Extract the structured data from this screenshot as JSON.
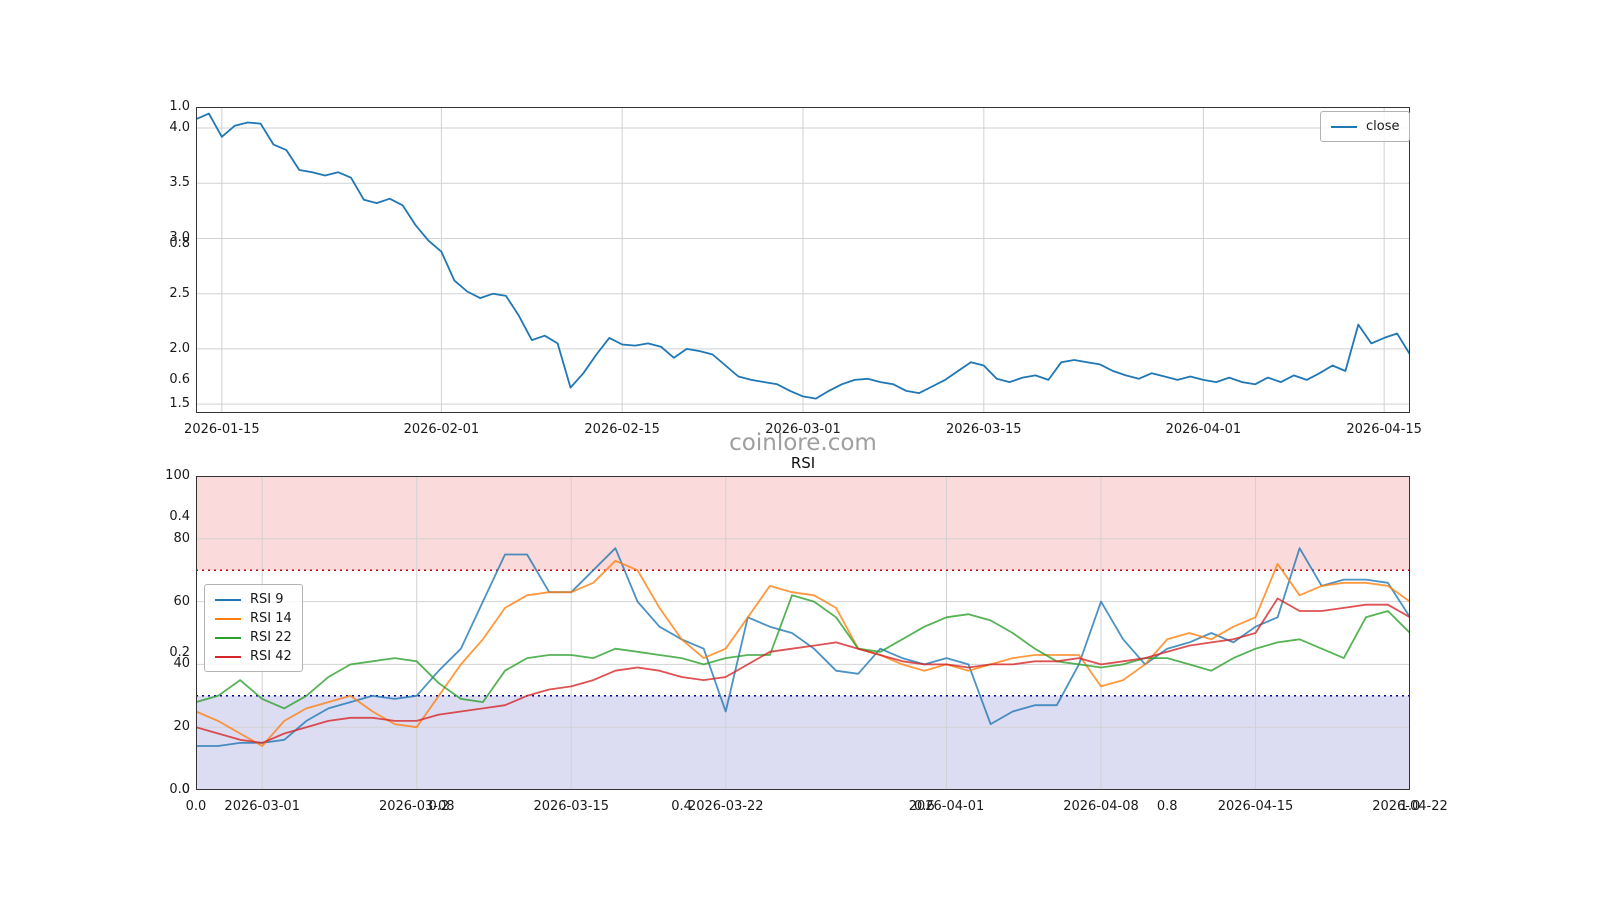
{
  "watermark": "coinlore.com",
  "overlay_axis": {
    "y_ticks": [
      "1.0",
      "0.8",
      "0.6",
      "0.4",
      "0.2",
      "0.0"
    ],
    "x_ticks": [
      "0.0",
      "0.2",
      "0.4",
      "0.6",
      "0.8",
      "1.0"
    ]
  },
  "chart_data": [
    {
      "type": "line",
      "title": "",
      "xlabel": "",
      "ylabel": "",
      "grid": true,
      "legend_position": "upper right",
      "ylim": [
        1.42,
        4.19
      ],
      "y_ticks": [
        "4.0",
        "3.5",
        "3.0",
        "2.5",
        "2.0",
        "1.5"
      ],
      "x_ticks": [
        "2026-01-15",
        "2026-02-01",
        "2026-02-15",
        "2026-03-01",
        "2026-03-15",
        "2026-04-01",
        "2026-04-15"
      ],
      "x": [
        "2026-01-13",
        "2026-01-14",
        "2026-01-15",
        "2026-01-16",
        "2026-01-17",
        "2026-01-18",
        "2026-01-19",
        "2026-01-20",
        "2026-01-21",
        "2026-01-22",
        "2026-01-23",
        "2026-01-24",
        "2026-01-25",
        "2026-01-26",
        "2026-01-27",
        "2026-01-28",
        "2026-01-29",
        "2026-01-30",
        "2026-01-31",
        "2026-02-01",
        "2026-02-02",
        "2026-02-03",
        "2026-02-04",
        "2026-02-05",
        "2026-02-06",
        "2026-02-07",
        "2026-02-08",
        "2026-02-09",
        "2026-02-10",
        "2026-02-11",
        "2026-02-12",
        "2026-02-13",
        "2026-02-14",
        "2026-02-15",
        "2026-02-16",
        "2026-02-17",
        "2026-02-18",
        "2026-02-19",
        "2026-02-20",
        "2026-02-21",
        "2026-02-22",
        "2026-02-23",
        "2026-02-24",
        "2026-02-25",
        "2026-02-26",
        "2026-02-27",
        "2026-02-28",
        "2026-03-01",
        "2026-03-02",
        "2026-03-03",
        "2026-03-04",
        "2026-03-05",
        "2026-03-06",
        "2026-03-07",
        "2026-03-08",
        "2026-03-09",
        "2026-03-10",
        "2026-03-11",
        "2026-03-12",
        "2026-03-13",
        "2026-03-14",
        "2026-03-15",
        "2026-03-16",
        "2026-03-17",
        "2026-03-18",
        "2026-03-19",
        "2026-03-20",
        "2026-03-21",
        "2026-03-22",
        "2026-03-23",
        "2026-03-24",
        "2026-03-25",
        "2026-03-26",
        "2026-03-27",
        "2026-03-28",
        "2026-03-29",
        "2026-03-30",
        "2026-03-31",
        "2026-04-01",
        "2026-04-02",
        "2026-04-03",
        "2026-04-04",
        "2026-04-05",
        "2026-04-06",
        "2026-04-07",
        "2026-04-08",
        "2026-04-09",
        "2026-04-10",
        "2026-04-11",
        "2026-04-12",
        "2026-04-13",
        "2026-04-14",
        "2026-04-15",
        "2026-04-16",
        "2026-04-17"
      ],
      "series": [
        {
          "name": "close",
          "color": "#1f77b4",
          "opacity": 1,
          "values": [
            4.08,
            4.13,
            3.92,
            4.02,
            4.05,
            4.04,
            3.85,
            3.8,
            3.62,
            3.6,
            3.57,
            3.6,
            3.55,
            3.35,
            3.32,
            3.36,
            3.3,
            3.12,
            2.98,
            2.88,
            2.62,
            2.52,
            2.46,
            2.5,
            2.48,
            2.3,
            2.08,
            2.12,
            2.05,
            1.65,
            1.78,
            1.95,
            2.1,
            2.04,
            2.03,
            2.05,
            2.02,
            1.92,
            2.0,
            1.98,
            1.95,
            1.85,
            1.75,
            1.72,
            1.7,
            1.68,
            1.62,
            1.57,
            1.55,
            1.62,
            1.68,
            1.72,
            1.73,
            1.7,
            1.68,
            1.62,
            1.6,
            1.66,
            1.72,
            1.8,
            1.88,
            1.85,
            1.73,
            1.7,
            1.74,
            1.76,
            1.72,
            1.88,
            1.9,
            1.88,
            1.86,
            1.8,
            1.76,
            1.73,
            1.78,
            1.75,
            1.72,
            1.75,
            1.72,
            1.7,
            1.74,
            1.7,
            1.68,
            1.74,
            1.7,
            1.76,
            1.72,
            1.78,
            1.85,
            1.8,
            2.22,
            2.05,
            2.1,
            2.14,
            1.95
          ]
        }
      ]
    },
    {
      "type": "line",
      "title": "RSI",
      "xlabel": "",
      "ylabel": "",
      "grid": true,
      "legend_position": "center left",
      "ylim": [
        0,
        100
      ],
      "y_ticks": [
        "100",
        "80",
        "60",
        "40",
        "20",
        "0"
      ],
      "x_ticks": [
        "2026-03-01",
        "2026-03-08",
        "2026-03-15",
        "2026-03-22",
        "2026-04-01",
        "2026-04-08",
        "2026-04-15",
        "2026-04-22"
      ],
      "bands": [
        {
          "from": 70,
          "to": 100,
          "color": "#fadada",
          "label": "overbought-zone"
        },
        {
          "from": 0,
          "to": 30,
          "color": "#dcdcf2",
          "label": "oversold-zone"
        }
      ],
      "thresholds": [
        {
          "value": 70,
          "color": "#cc0000",
          "style": "dotted"
        },
        {
          "value": 30,
          "color": "#00008b",
          "style": "dotted"
        }
      ],
      "x": [
        "2026-02-26",
        "2026-02-27",
        "2026-02-28",
        "2026-03-01",
        "2026-03-02",
        "2026-03-03",
        "2026-03-04",
        "2026-03-05",
        "2026-03-06",
        "2026-03-07",
        "2026-03-08",
        "2026-03-09",
        "2026-03-10",
        "2026-03-11",
        "2026-03-12",
        "2026-03-13",
        "2026-03-14",
        "2026-03-15",
        "2026-03-16",
        "2026-03-17",
        "2026-03-18",
        "2026-03-19",
        "2026-03-20",
        "2026-03-21",
        "2026-03-22",
        "2026-03-23",
        "2026-03-24",
        "2026-03-25",
        "2026-03-26",
        "2026-03-27",
        "2026-03-28",
        "2026-03-29",
        "2026-03-30",
        "2026-03-31",
        "2026-04-01",
        "2026-04-02",
        "2026-04-03",
        "2026-04-04",
        "2026-04-05",
        "2026-04-06",
        "2026-04-07",
        "2026-04-08",
        "2026-04-09",
        "2026-04-10",
        "2026-04-11",
        "2026-04-12",
        "2026-04-13",
        "2026-04-14",
        "2026-04-15",
        "2026-04-16",
        "2026-04-17",
        "2026-04-18",
        "2026-04-19",
        "2026-04-20",
        "2026-04-21",
        "2026-04-22"
      ],
      "series": [
        {
          "name": "RSI 9",
          "color": "#1f77b4",
          "opacity": 0.8,
          "values": [
            14,
            14,
            15,
            15,
            16,
            22,
            26,
            28,
            30,
            29,
            30,
            38,
            45,
            60,
            75,
            75,
            63,
            63,
            70,
            77,
            60,
            52,
            48,
            45,
            25,
            55,
            52,
            50,
            45,
            38,
            37,
            45,
            42,
            40,
            42,
            40,
            21,
            25,
            27,
            27,
            40,
            60,
            48,
            40,
            45,
            47,
            50,
            47,
            52,
            55,
            77,
            65,
            67,
            67,
            66,
            55
          ]
        },
        {
          "name": "RSI 14",
          "color": "#ff7f0e",
          "opacity": 0.8,
          "values": [
            25,
            22,
            18,
            14,
            22,
            26,
            28,
            30,
            25,
            21,
            20,
            30,
            40,
            48,
            58,
            62,
            63,
            63,
            66,
            73,
            70,
            58,
            48,
            42,
            45,
            55,
            65,
            63,
            62,
            58,
            45,
            43,
            40,
            38,
            40,
            38,
            40,
            42,
            43,
            43,
            43,
            33,
            35,
            40,
            48,
            50,
            48,
            52,
            55,
            72,
            62,
            65,
            66,
            66,
            65,
            60
          ]
        },
        {
          "name": "RSI 22",
          "color": "#2ca02c",
          "opacity": 0.8,
          "values": [
            28,
            30,
            35,
            29,
            26,
            30,
            36,
            40,
            41,
            42,
            41,
            34,
            29,
            28,
            38,
            42,
            43,
            43,
            42,
            45,
            44,
            43,
            42,
            40,
            42,
            43,
            43,
            62,
            60,
            55,
            45,
            44,
            48,
            52,
            55,
            56,
            54,
            50,
            45,
            41,
            40,
            39,
            40,
            42,
            42,
            40,
            38,
            42,
            45,
            47,
            48,
            45,
            42,
            55,
            57,
            50
          ]
        },
        {
          "name": "RSI 42",
          "color": "#d62728",
          "opacity": 0.8,
          "values": [
            20,
            18,
            16,
            15,
            18,
            20,
            22,
            23,
            23,
            22,
            22,
            24,
            25,
            26,
            27,
            30,
            32,
            33,
            35,
            38,
            39,
            38,
            36,
            35,
            36,
            40,
            44,
            45,
            46,
            47,
            45,
            43,
            41,
            40,
            40,
            39,
            40,
            40,
            41,
            41,
            42,
            40,
            41,
            42,
            44,
            46,
            47,
            48,
            50,
            61,
            57,
            57,
            58,
            59,
            59,
            55
          ]
        }
      ]
    }
  ]
}
